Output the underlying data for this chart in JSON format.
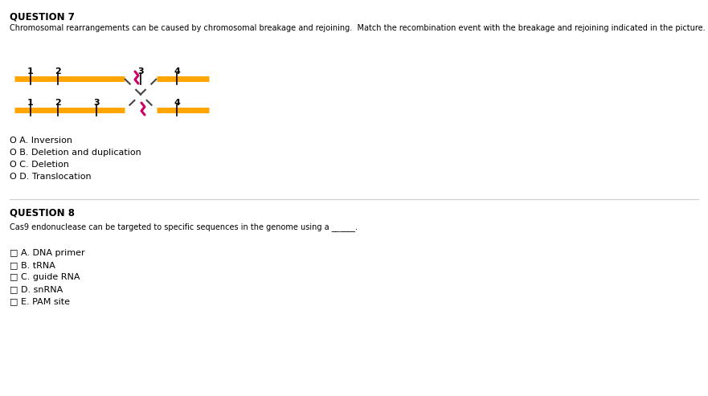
{
  "q7_title": "QUESTION 7",
  "q7_text": "Chromosomal rearrangements can be caused by chromosomal breakage and rejoining.  Match the recombination event with the breakage and rejoining indicated in the picture.",
  "q7_options": [
    "O A. Inversion",
    "O B. Deletion and duplication",
    "O C. Deletion",
    "O D. Translocation"
  ],
  "q8_title": "QUESTION 8",
  "q8_text": "Cas9 endonuclease can be targeted to specific sequences in the genome using a ______.",
  "q8_options": [
    "□ A. DNA primer",
    "□ B. tRNA",
    "□ C. guide RNA",
    "□ D. snRNA",
    "□ E. PAM site"
  ],
  "chrom_color": "#FFA500",
  "break_color": "#CC0066",
  "dashed_color": "#444444",
  "bg_color": "#ffffff",
  "text_color": "#000000"
}
